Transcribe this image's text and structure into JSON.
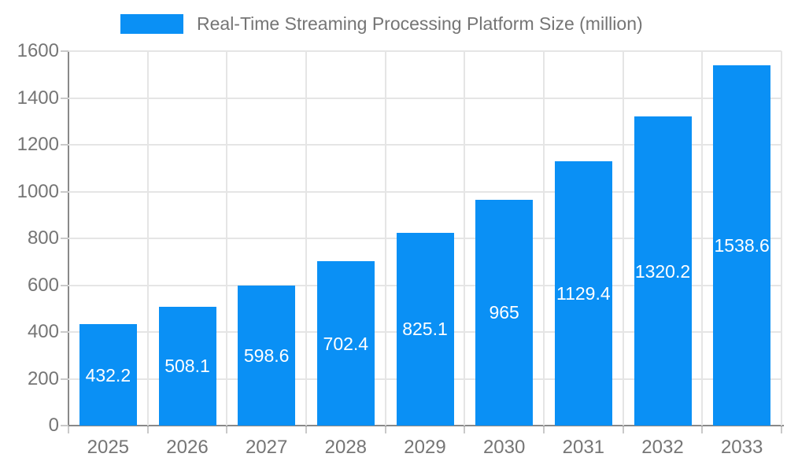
{
  "chart_data": {
    "type": "bar",
    "title": "Real-Time Streaming Processing Platform Size (million)",
    "legend_position": "top",
    "categories": [
      "2025",
      "2026",
      "2027",
      "2028",
      "2029",
      "2030",
      "2031",
      "2032",
      "2033"
    ],
    "values": [
      432.2,
      508.1,
      598.6,
      702.4,
      825.1,
      965,
      1129.4,
      1320.2,
      1538.6
    ],
    "value_labels": [
      "432.2",
      "508.1",
      "598.6",
      "702.4",
      "825.1",
      "965",
      "1129.4",
      "1320.2",
      "1538.6"
    ],
    "xlabel": "",
    "ylabel": "",
    "ylim": [
      0,
      1600
    ],
    "ytick_step": 200,
    "yticks": [
      0,
      200,
      400,
      600,
      800,
      1000,
      1200,
      1400,
      1600
    ],
    "grid": true,
    "colors": {
      "bar": "#0a90f5",
      "bar_value_text": "#ffffff",
      "axis_text": "#757575",
      "legend_text": "#757575",
      "grid_line": "#e5e5e5",
      "axis_line": "#898989",
      "tick_mark": "#c9c9c9",
      "background": "#ffffff"
    }
  }
}
